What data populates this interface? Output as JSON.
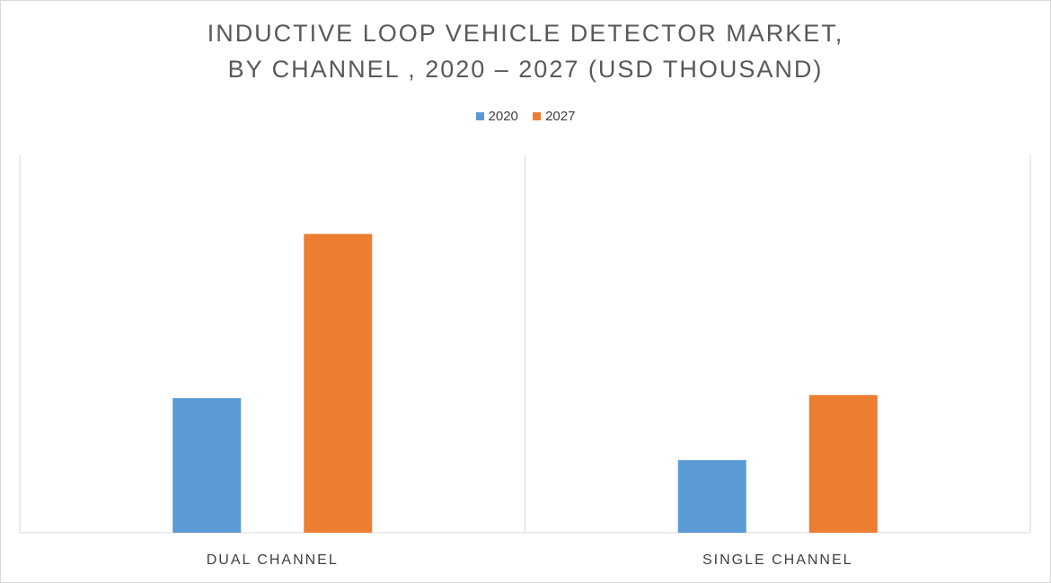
{
  "chart_data": {
    "type": "bar",
    "title_line1": "INDUCTIVE LOOP VEHICLE DETECTOR MARKET,",
    "title_line2": "BY CHANNEL , 2020 – 2027 (USD THOUSAND)",
    "categories": [
      "DUAL CHANNEL",
      "SINGLE CHANNEL"
    ],
    "series": [
      {
        "name": "2020",
        "color": "#5b9bd5",
        "values": [
          178,
          96
        ]
      },
      {
        "name": "2027",
        "color": "#ed7d31",
        "values": [
          395,
          182
        ]
      }
    ],
    "ylim": [
      0,
      500
    ],
    "xlabel": "",
    "ylabel": "",
    "legend": "top-center",
    "grid": false
  }
}
